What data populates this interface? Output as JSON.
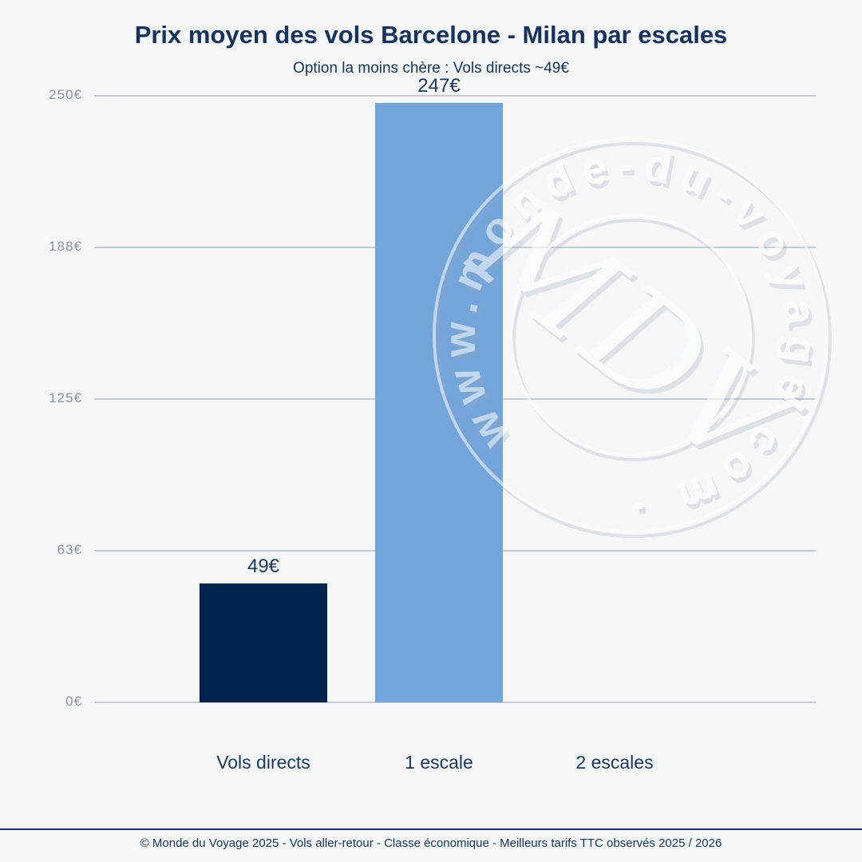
{
  "header": {
    "title": "Prix moyen des vols Barcelone - Milan par escales",
    "subtitle": "Option la moins chère : Vols directs ~49€"
  },
  "chart_data": {
    "type": "bar",
    "title": "Prix moyen des vols Barcelone - Milan par escales",
    "subtitle": "Option la moins chère : Vols directs ~49€",
    "categories": [
      "Vols directs",
      "1 escale",
      "2 escales"
    ],
    "values": [
      49,
      247,
      null
    ],
    "value_labels": [
      "49€",
      "247€",
      ""
    ],
    "bar_colors": [
      "#02234e",
      "#74a5da",
      null
    ],
    "xlabel": "",
    "ylabel": "",
    "ylim": [
      0,
      250
    ],
    "yticks": [
      {
        "value": 0,
        "label": "0€"
      },
      {
        "value": 62.5,
        "label": "63€"
      },
      {
        "value": 125,
        "label": "125€"
      },
      {
        "value": 187.5,
        "label": "188€"
      },
      {
        "value": 250,
        "label": "250€"
      }
    ],
    "grid": true,
    "legend": false
  },
  "watermark": {
    "circle_text": "www.monde-du-voyage.com ·",
    "center_text": "MDV"
  },
  "footer": {
    "text": "© Monde du Voyage 2025 - Vols aller-retour - Classe économique - Meilleurs tarifs TTC observés 2025 / 2026"
  },
  "colors": {
    "background": "#f5f6f7",
    "title_navy": "#15315e",
    "bar_dark_navy": "#02234e",
    "bar_light_blue": "#74a5da",
    "gridline_gray": "#c5cad3",
    "ytick_gray": "#8a93a3",
    "label_navy": "#1b3763",
    "watermark_white": "#ffffff"
  }
}
